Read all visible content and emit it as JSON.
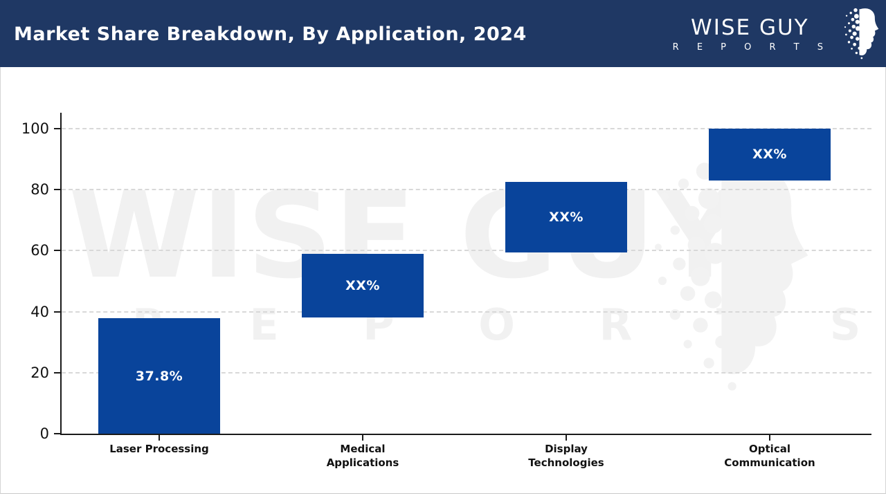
{
  "header": {
    "title": "Market Share Breakdown, By Application, 2024",
    "brand": {
      "name": "WISE GUY",
      "sub": "R E P O R T S"
    }
  },
  "watermark": {
    "line1": "WISE GUY",
    "line2": "R E P O R T S"
  },
  "chart_data": {
    "type": "bar",
    "subtype": "floating-segment-waterfall",
    "title": "Market Share Breakdown, By Application, 2024",
    "xlabel": "",
    "ylabel": "",
    "ylim": [
      0,
      105
    ],
    "yticks": [
      0,
      20,
      40,
      60,
      80,
      100
    ],
    "grid": "horizontal-dashed",
    "legend": "none",
    "categories": [
      "Laser Processing",
      "Medical Applications",
      "Display Technologies",
      "Optical Communication"
    ],
    "categories_lines": [
      [
        "Laser Processing"
      ],
      [
        "Medical",
        "Applications"
      ],
      [
        "Display",
        "Technologies"
      ],
      [
        "Optical",
        "Communication"
      ]
    ],
    "segments": [
      {
        "category": "Laser Processing",
        "start": 0,
        "end": 37.8,
        "label": "37.8%"
      },
      {
        "category": "Medical Applications",
        "start": 38,
        "end": 59,
        "label": "XX%"
      },
      {
        "category": "Display Technologies",
        "start": 59.5,
        "end": 82.5,
        "label": "XX%"
      },
      {
        "category": "Optical Communication",
        "start": 83,
        "end": 100,
        "label": "XX%"
      }
    ],
    "bar_color": "#09449b",
    "bar_label_color": "#ffffff"
  },
  "colors": {
    "header_bg": "#1f3864",
    "bar": "#09449b",
    "grid": "#d8d8d8",
    "axis": "#1a1a1a",
    "watermark": "#f1f1f1",
    "frame_border": "#c9c9c9"
  }
}
